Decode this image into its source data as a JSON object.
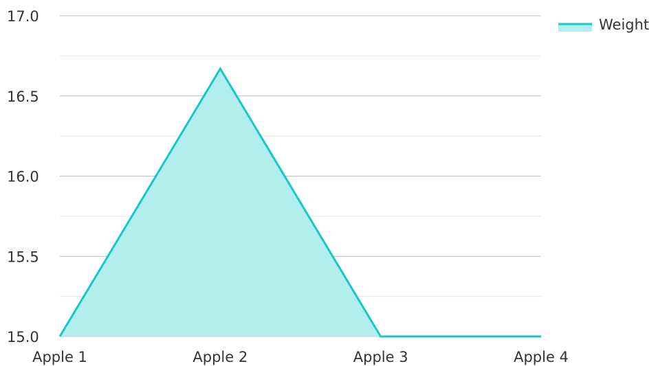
{
  "chart_data": {
    "type": "area",
    "title": "",
    "xlabel": "",
    "ylabel": "",
    "categories": [
      "Apple 1",
      "Apple 2",
      "Apple 3",
      "Apple 4"
    ],
    "series": [
      {
        "name": "Weight",
        "values": [
          15.0,
          16.67,
          15.0,
          15.0
        ]
      }
    ],
    "ylim": [
      15.0,
      17.0
    ],
    "y_ticks": [
      15.0,
      15.5,
      16.0,
      16.5,
      17.0
    ],
    "y_tick_labels": [
      "15.0",
      "15.5",
      "16.0",
      "16.5",
      "17.0"
    ],
    "grid": true,
    "legend_position": "top-right",
    "colors": {
      "line": "#16c7c9",
      "fill": "#b1eeed",
      "grid_major": "#bdbdbd",
      "grid_minor": "#e3e3e3"
    }
  }
}
